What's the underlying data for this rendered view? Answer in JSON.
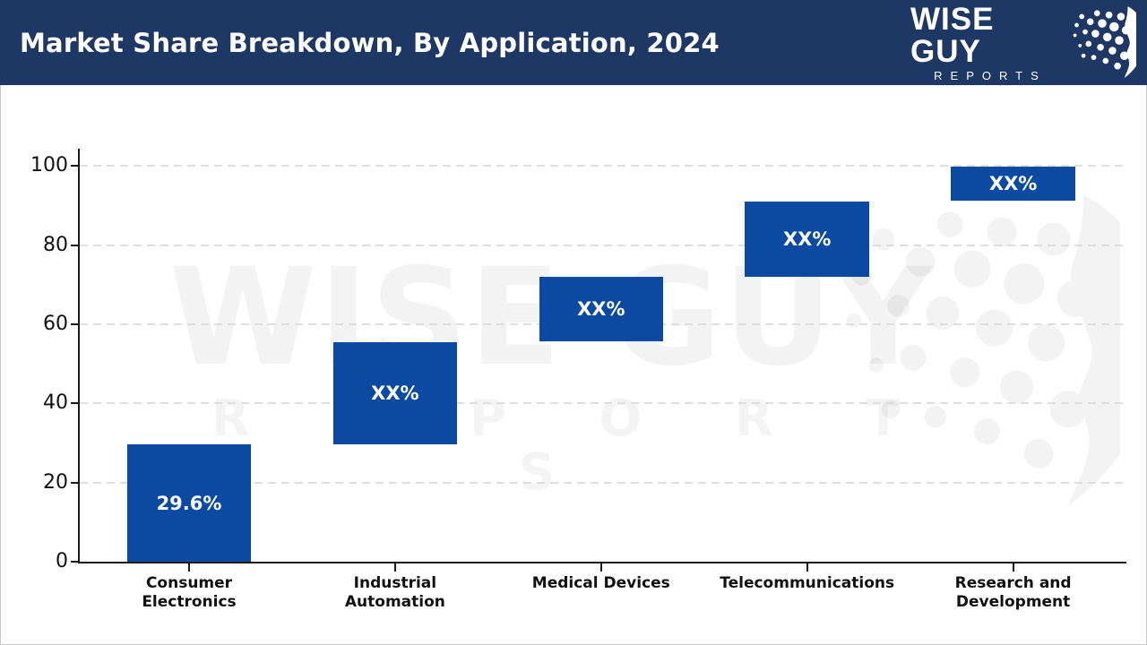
{
  "header": {
    "title": "Market Share Breakdown, By Application, 2024"
  },
  "logo": {
    "line1": "WISE GUY",
    "line2": "REPORTS"
  },
  "watermark": {
    "line1": "WISE GUY",
    "line2": "R E P O R T S"
  },
  "colors": {
    "header_bg": "#1e3866",
    "bar": "#0b4aa2",
    "bar_label": "#ffffff"
  },
  "chart_data": {
    "type": "bar",
    "variant": "waterfall",
    "title": "Market Share Breakdown, By Application, 2024",
    "categories": [
      "Consumer Electronics",
      "Industrial Automation",
      "Medical Devices",
      "Telecommunications",
      "Research and Development"
    ],
    "category_lines": [
      [
        "Consumer",
        "Electronics"
      ],
      [
        "Industrial",
        "Automation"
      ],
      [
        "Medical Devices"
      ],
      [
        "Telecommunications"
      ],
      [
        "Research and",
        "Development"
      ]
    ],
    "segments": [
      {
        "category": "Consumer Electronics",
        "start": 0,
        "end": 29.6,
        "label": "29.6%"
      },
      {
        "category": "Industrial Automation",
        "start": 29.6,
        "end": 55.4,
        "label": "XX%"
      },
      {
        "category": "Medical Devices",
        "start": 55.6,
        "end": 71.9,
        "label": "XX%"
      },
      {
        "category": "Telecommunications",
        "start": 72.1,
        "end": 91.1,
        "label": "XX%"
      },
      {
        "category": "Research and Development",
        "start": 91.2,
        "end": 99.8,
        "label": "XX%"
      }
    ],
    "ylim": [
      0,
      104
    ],
    "yticks": [
      0,
      20,
      40,
      60,
      80,
      100
    ],
    "xlabel": "",
    "ylabel": "",
    "grid": "horizontal-dashed",
    "legend": "none"
  }
}
